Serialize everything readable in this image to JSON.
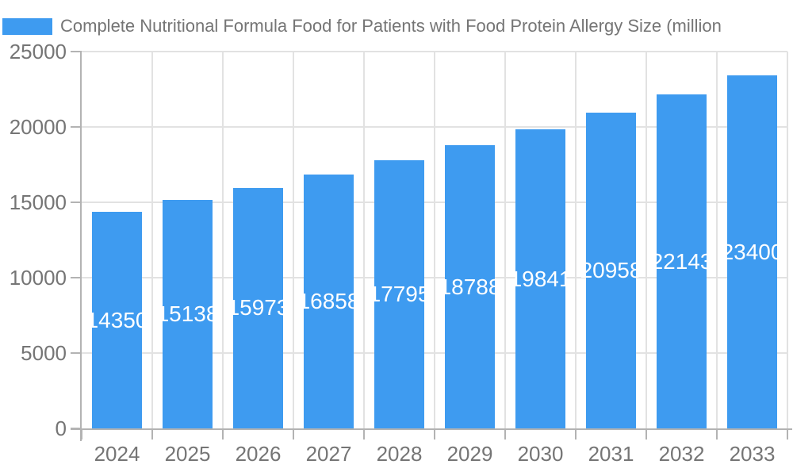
{
  "chart_data": {
    "type": "bar",
    "title": "Complete Nutritional Formula Food for Patients with Food Protein Allergy Size (million",
    "categories": [
      "2024",
      "2025",
      "2026",
      "2027",
      "2028",
      "2029",
      "2030",
      "2031",
      "2032",
      "2033"
    ],
    "values": [
      14350,
      15138,
      15973,
      16858,
      17795,
      18788,
      19841,
      20958,
      22143,
      23400
    ],
    "xlabel": "",
    "ylabel": "",
    "ylim": [
      0,
      25000
    ],
    "yticks": [
      0,
      5000,
      10000,
      15000,
      20000,
      25000
    ],
    "grid": true,
    "bar_labels_visible": true,
    "legend_position": "top-left",
    "colors": {
      "bar": "#3e9bf0",
      "bar_label": "#ffffff",
      "axis_text": "#757575",
      "title_text": "#757575",
      "gridline": "#e2e2e2",
      "axis_line": "#b3b3b3"
    }
  }
}
